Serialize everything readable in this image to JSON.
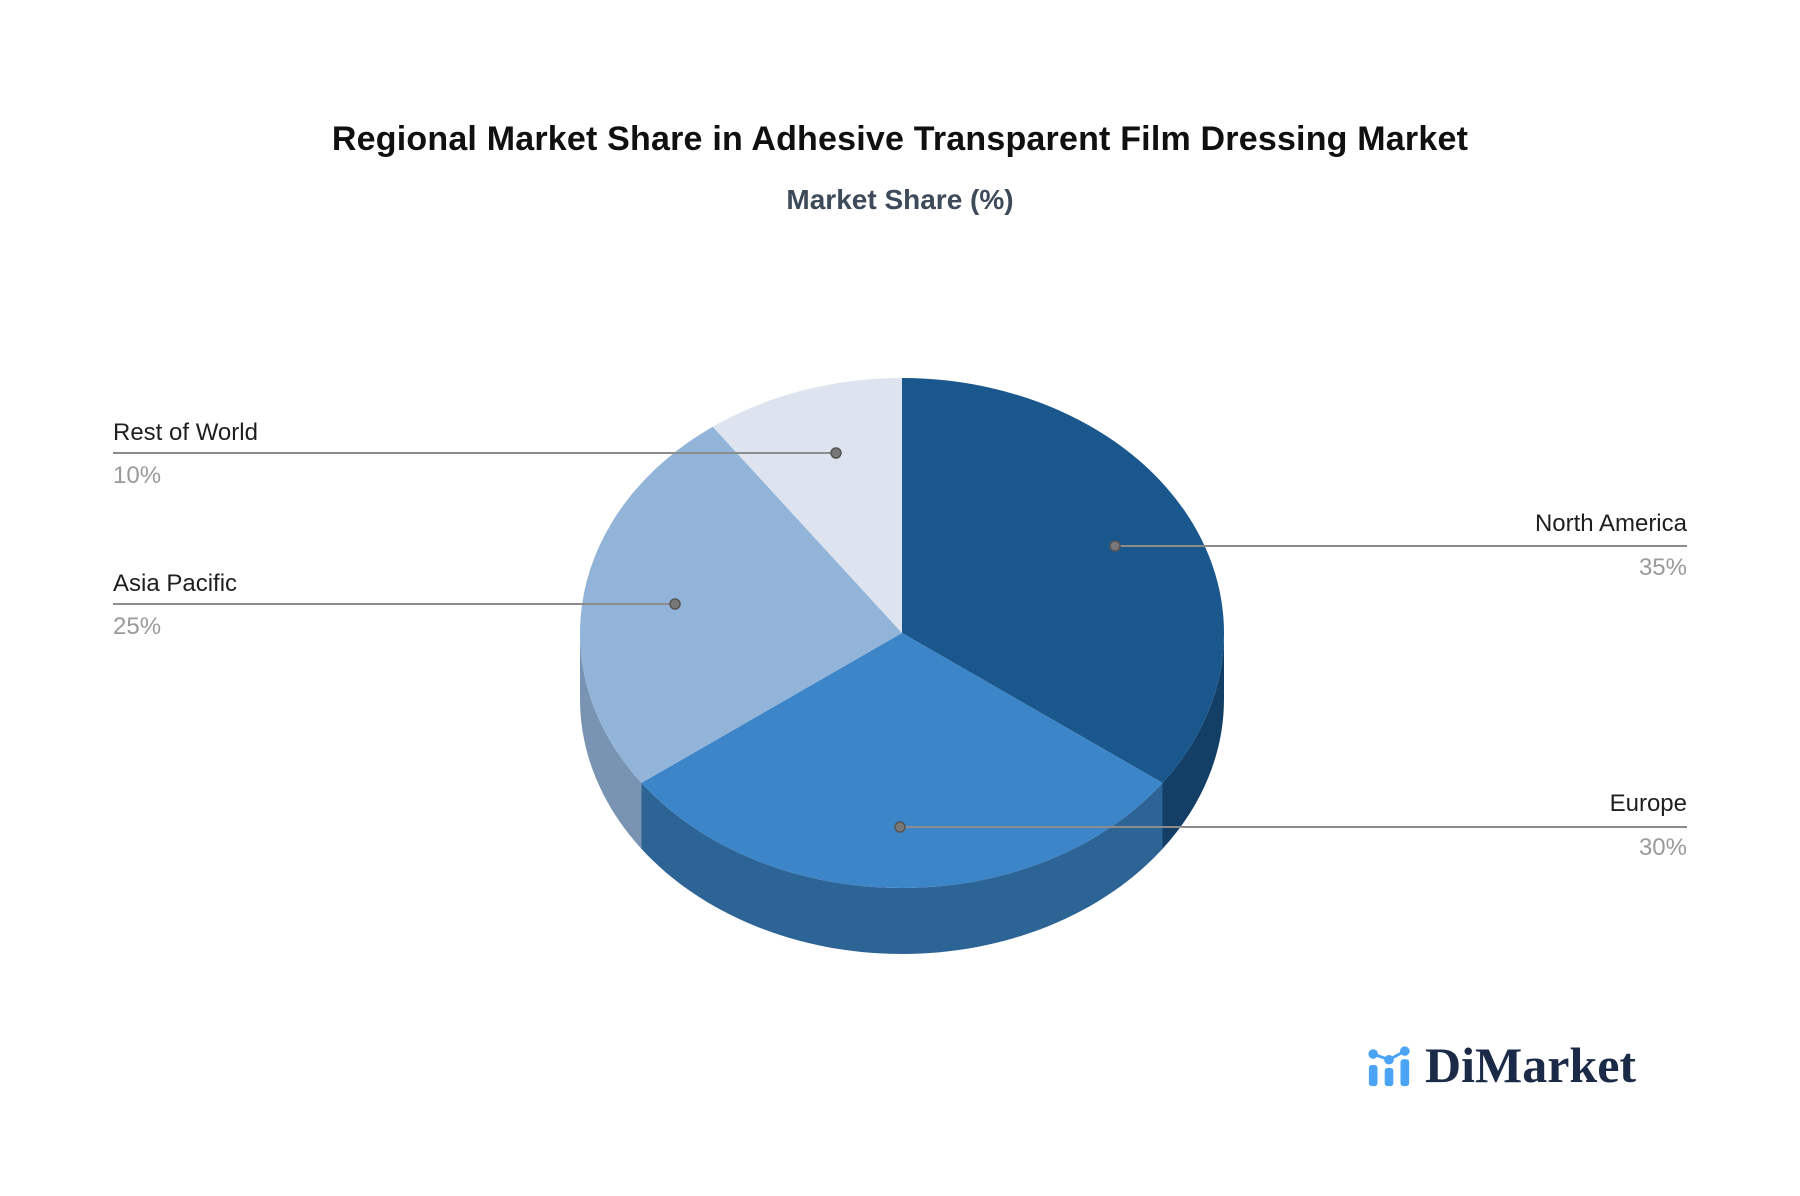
{
  "header": {
    "title": "Regional Market Share in Adhesive Transparent Film Dressing Market",
    "subtitle": "Market Share (%)"
  },
  "chart_data": {
    "type": "pie",
    "style": "3d-pie",
    "title": "Regional Market Share in Adhesive Transparent Film Dressing Market",
    "subtitle": "Market Share (%)",
    "unit": "%",
    "direction": "clockwise",
    "start_angle_deg": 0,
    "legend_position": "none",
    "label_style": "leader-lines",
    "categories": [
      "North America",
      "Europe",
      "Asia Pacific",
      "Rest of World"
    ],
    "values": [
      35,
      30,
      25,
      10
    ],
    "series": [
      {
        "label": "North America",
        "value": 35,
        "pct_label": "35%",
        "color": "#1A578C",
        "side_color": "#133F66"
      },
      {
        "label": "Europe",
        "value": 30,
        "pct_label": "30%",
        "color": "#3C85C8",
        "side_color": "#2D6496"
      },
      {
        "label": "Asia Pacific",
        "value": 25,
        "pct_label": "25%",
        "color": "#92B4D9",
        "side_color": "#7894B2"
      },
      {
        "label": "Rest of World",
        "value": 10,
        "pct_label": "10%",
        "color": "#DEE4EF",
        "side_color": "#B8C3D6"
      }
    ]
  },
  "leader": {
    "line_color": "#8c8c8c",
    "dot_fill": "#787878",
    "dot_stroke": "#555555"
  },
  "logo": {
    "text": "DiMarket",
    "icon": "bar-line-chart-icon",
    "icon_color": "#4BA3F5",
    "text_color": "#1B2A47"
  }
}
